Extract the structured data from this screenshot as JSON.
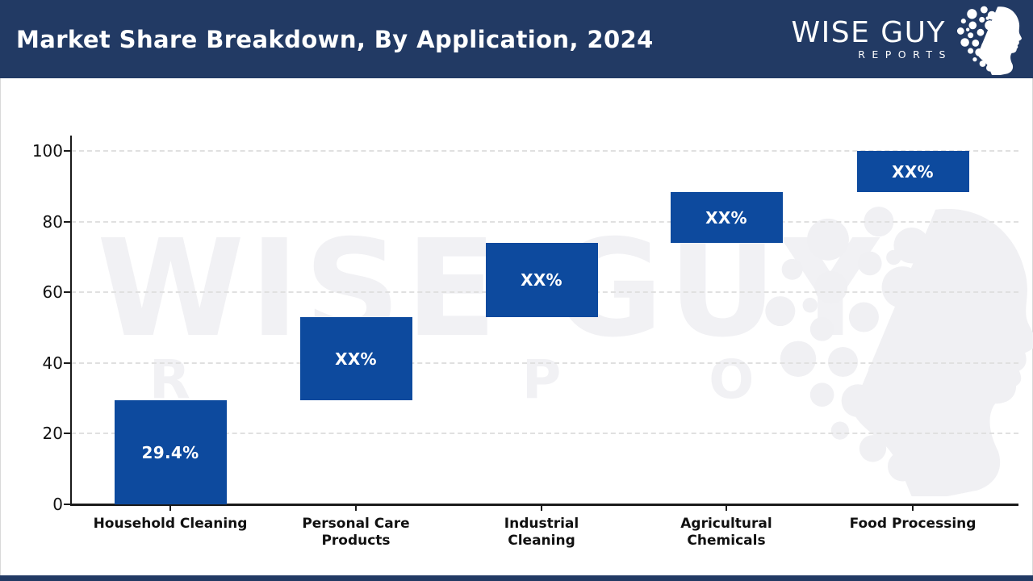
{
  "header": {
    "title": "Market Share Breakdown, By Application, 2024",
    "logo": {
      "line1": "WISE GUY",
      "line2": "REPORTS"
    }
  },
  "watermark": {
    "line1": "WISE GUY",
    "line2": "R E P O R T S"
  },
  "colors": {
    "header_bg": "#223a64",
    "bar": "#0d4a9e",
    "grid": "#e0e0e0",
    "axis": "#1a1a1a",
    "bar_label_text": "#ffffff",
    "watermark": "#f1f1f4"
  },
  "chart_data": {
    "type": "bar",
    "subtype": "waterfall",
    "title": "Market Share Breakdown, By Application, 2024",
    "categories": [
      "Household Cleaning",
      "Personal Care\nProducts",
      "Industrial\nCleaning",
      "Agricultural\nChemicals",
      "Food Processing"
    ],
    "segments": [
      {
        "category": "Household Cleaning",
        "start": 0,
        "end": 29.4,
        "label": "29.4%"
      },
      {
        "category": "Personal Care Products",
        "start": 29.4,
        "end": 53,
        "label": "XX%"
      },
      {
        "category": "Industrial Cleaning",
        "start": 53,
        "end": 74,
        "label": "XX%"
      },
      {
        "category": "Agricultural Chemicals",
        "start": 74,
        "end": 88.3,
        "label": "XX%"
      },
      {
        "category": "Food Processing",
        "start": 88.3,
        "end": 100,
        "label": "XX%"
      }
    ],
    "xlabel": "",
    "ylabel": "",
    "yticks": [
      0,
      20,
      40,
      60,
      80,
      100
    ],
    "ylim": [
      0,
      100
    ],
    "grid": "horizontal-dashed",
    "legend": "none"
  }
}
